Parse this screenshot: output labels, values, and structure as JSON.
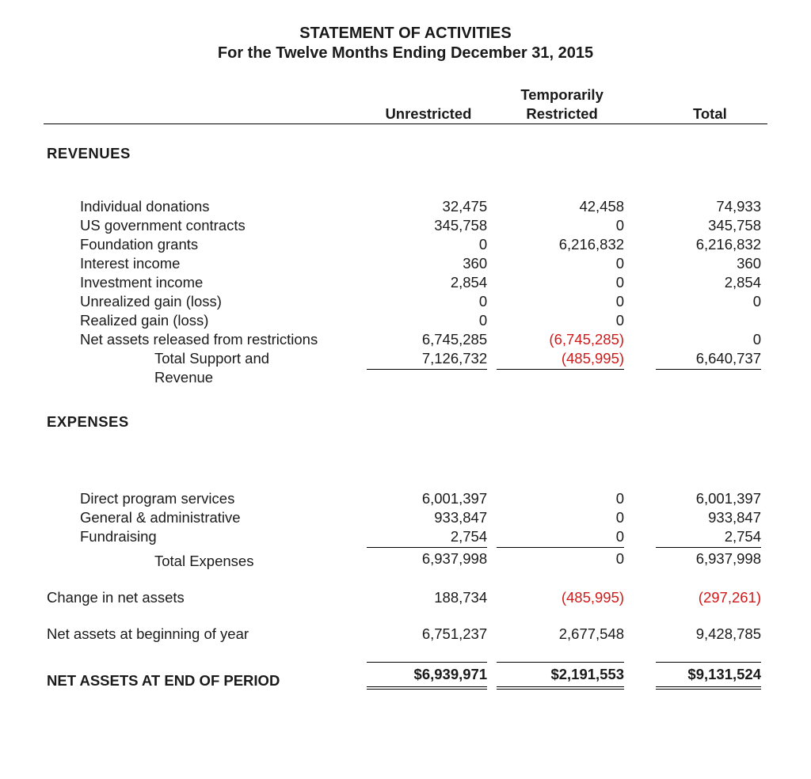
{
  "title_line1": "STATEMENT OF ACTIVITIES",
  "title_line2": "For the Twelve Months Ending December 31, 2015",
  "columns": {
    "c1": "Unrestricted",
    "c2_top": "Temporarily",
    "c2_bot": "Restricted",
    "c3": "Total"
  },
  "sections": {
    "revenues_label": "REVENUES",
    "expenses_label": "EXPENSES"
  },
  "rows": {
    "individual_donations": {
      "label": "Individual donations",
      "c1": "32,475",
      "c2": "42,458",
      "c3": "74,933"
    },
    "us_gov_contracts": {
      "label": "US government contracts",
      "c1": "345,758",
      "c2": "0",
      "c3": "345,758"
    },
    "foundation_grants": {
      "label": "Foundation grants",
      "c1": "0",
      "c2": "6,216,832",
      "c3": "6,216,832"
    },
    "interest_income": {
      "label": "Interest income",
      "c1": "360",
      "c2": "0",
      "c3": "360"
    },
    "investment_income": {
      "label": "Investment income",
      "c1": "2,854",
      "c2": "0",
      "c3": "2,854"
    },
    "unrealized_gain": {
      "label": "Unrealized gain (loss)",
      "c1": "0",
      "c2": "0",
      "c3": "0"
    },
    "realized_gain": {
      "label": "Realized gain (loss)",
      "c1": "0",
      "c2": "0",
      "c3": ""
    },
    "net_assets_released": {
      "label": "Net assets released from restrictions",
      "c1": "6,745,285",
      "c2": "(6,745,285)",
      "c3": "0",
      "c2_neg": true
    },
    "total_support_a": {
      "label": "Total Support and",
      "c1": "7,126,732",
      "c2": "(485,995)",
      "c3": "6,640,737",
      "c2_neg": true
    },
    "total_support_b": {
      "label": "Revenue"
    },
    "direct_program": {
      "label": "Direct program services",
      "c1": "6,001,397",
      "c2": "0",
      "c3": "6,001,397"
    },
    "general_admin": {
      "label": "General & administrative",
      "c1": "933,847",
      "c2": "0",
      "c3": "933,847"
    },
    "fundraising": {
      "label": "Fundraising",
      "c1": "2,754",
      "c2": "0",
      "c3": "2,754"
    },
    "total_expenses": {
      "label": "Total Expenses",
      "c1": "6,937,998",
      "c2": "0",
      "c3": "6,937,998"
    },
    "change_net_assets": {
      "label": "Change in net assets",
      "c1": "188,734",
      "c2": "(485,995)",
      "c3": "(297,261)",
      "c2_neg": true,
      "c3_neg": true
    },
    "beginning_year": {
      "label": "Net assets at beginning of year",
      "c1": "6,751,237",
      "c2": "2,677,548",
      "c3": "9,428,785"
    },
    "end_period": {
      "label": "NET ASSETS AT END OF PERIOD",
      "c1": "$6,939,971",
      "c2": "$2,191,553",
      "c3": "$9,131,524"
    }
  },
  "style": {
    "text_color": "#1a1a1a",
    "negative_color": "#d11a1a",
    "font_size_body": 18.5,
    "font_size_title": 20,
    "rule_color": "#000000"
  }
}
